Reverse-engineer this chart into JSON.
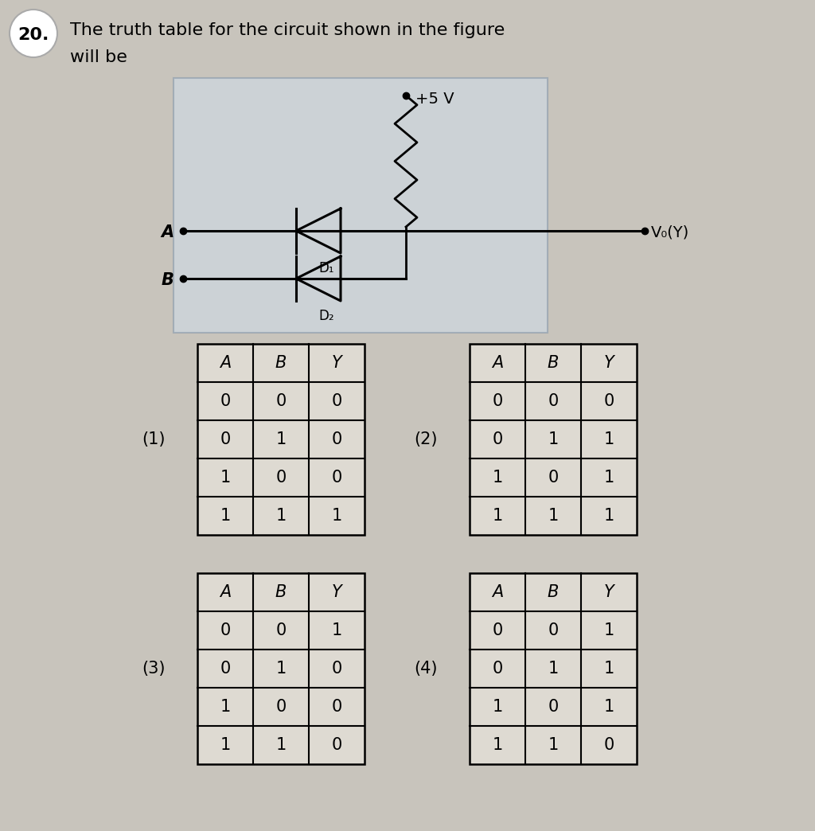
{
  "bg_color": "#c8c4bc",
  "paper_color": "#d8d4cc",
  "table_bg": "#e0dcd4",
  "table1": {
    "label": "(1)",
    "headers": [
      "A",
      "B",
      "Y"
    ],
    "rows": [
      [
        "0",
        "0",
        "0"
      ],
      [
        "0",
        "1",
        "0"
      ],
      [
        "1",
        "0",
        "0"
      ],
      [
        "1",
        "1",
        "1"
      ]
    ]
  },
  "table2": {
    "label": "(2)",
    "headers": [
      "A",
      "B",
      "Y"
    ],
    "rows": [
      [
        "0",
        "0",
        "0"
      ],
      [
        "0",
        "1",
        "1"
      ],
      [
        "1",
        "0",
        "1"
      ],
      [
        "1",
        "1",
        "1"
      ]
    ]
  },
  "table3": {
    "label": "(3)",
    "headers": [
      "A",
      "B",
      "Y"
    ],
    "rows": [
      [
        "0",
        "0",
        "1"
      ],
      [
        "0",
        "1",
        "0"
      ],
      [
        "1",
        "0",
        "0"
      ],
      [
        "1",
        "1",
        "0"
      ]
    ]
  },
  "table4": {
    "label": "(4)",
    "headers": [
      "A",
      "B",
      "Y"
    ],
    "rows": [
      [
        "0",
        "0",
        "1"
      ],
      [
        "0",
        "1",
        "1"
      ],
      [
        "1",
        "0",
        "1"
      ],
      [
        "1",
        "1",
        "0"
      ]
    ]
  },
  "circuit": {
    "plus5v_label": "+5 V",
    "input_a": "A",
    "input_b": "B",
    "diode1": "D₁",
    "diode2": "D₂",
    "output": "V₀(Y)"
  },
  "question_num": "20.",
  "q_line1": "The truth table for the circuit shown in the figure",
  "q_line2": "will be"
}
